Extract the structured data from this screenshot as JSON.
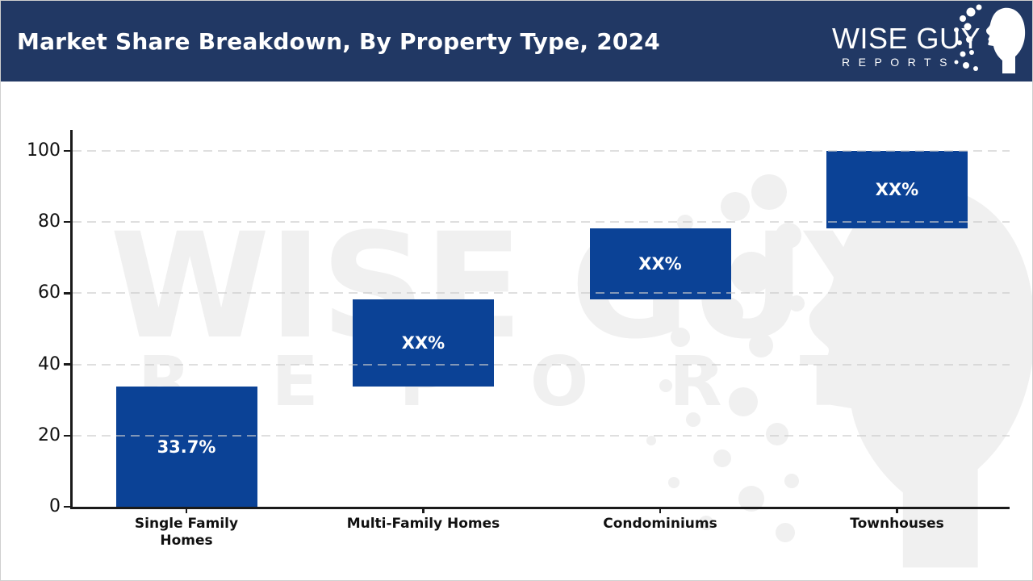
{
  "header": {
    "title": "Market Share Breakdown, By Property Type, 2024",
    "logo": {
      "line1": "WISE GUY",
      "line2": "REPORTS"
    }
  },
  "watermark": {
    "line1": "WISE GUY",
    "line2": "REPORTS"
  },
  "colors": {
    "header_bg": "#213864",
    "bar": "#0b4296",
    "axis": "#1a1a1a",
    "grid": "#cbcbcb",
    "watermark": "#f0f0f0",
    "bar_label_text": "#ffffff",
    "title_text": "#ffffff",
    "tick_text": "#111111"
  },
  "chart_data": {
    "type": "bar",
    "subtype": "waterfall",
    "title": "Market Share Breakdown, By Property Type, 2024",
    "xlabel": "",
    "ylabel": "",
    "ylim": [
      0,
      106
    ],
    "grid": "dashed-horizontal-over-bars",
    "legend": false,
    "yticks": [
      0,
      20,
      40,
      60,
      80,
      100
    ],
    "categories": [
      "Single Family Homes",
      "Multi-Family Homes",
      "Condominiums",
      "Townhouses"
    ],
    "bars": [
      {
        "category": "Single Family Homes",
        "label_lines": [
          "Single Family",
          "Homes"
        ],
        "base": 0,
        "top": 33.7,
        "label": "33.7%"
      },
      {
        "category": "Multi-Family Homes",
        "label_lines": [
          "Multi-Family Homes"
        ],
        "base": 33.7,
        "top": 58.3,
        "label": "XX%"
      },
      {
        "category": "Condominiums",
        "label_lines": [
          "Condominiums"
        ],
        "base": 58.3,
        "top": 78.3,
        "label": "XX%"
      },
      {
        "category": "Townhouses",
        "label_lines": [
          "Townhouses"
        ],
        "base": 78.3,
        "top": 100,
        "label": "XX%"
      }
    ]
  }
}
